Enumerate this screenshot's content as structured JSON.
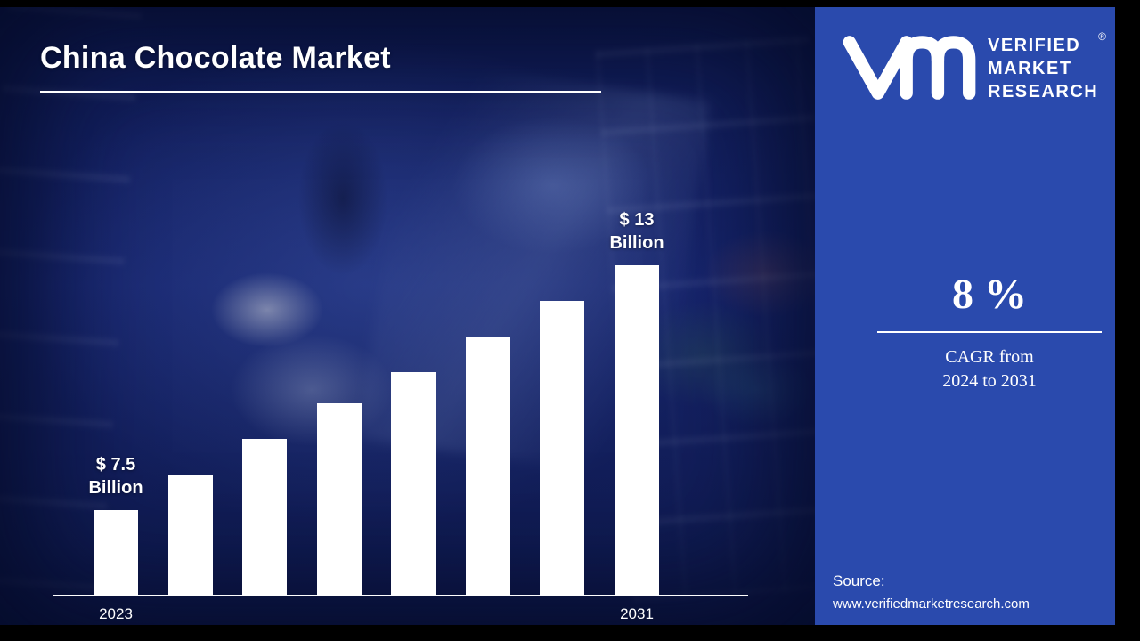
{
  "header": {
    "title": "China Chocolate Market"
  },
  "brand": {
    "name_lines": [
      "VERIFIED",
      "MARKET",
      "RESEARCH"
    ],
    "registered": "®"
  },
  "stat": {
    "value": "8 %",
    "line1": "CAGR from",
    "line2": "2024 to 2031"
  },
  "source": {
    "label": "Source:",
    "url": "www.verifiedmarketresearch.com"
  },
  "colors": {
    "panel": "#2a4aad",
    "background": "#16246e",
    "bar": "#ffffff",
    "text": "#ffffff"
  },
  "chart_data": {
    "type": "bar",
    "title": "China Chocolate Market",
    "unit": "USD Billion",
    "values": [
      7.5,
      8.3,
      9.1,
      9.9,
      10.6,
      11.4,
      12.2,
      13
    ],
    "ylim": [
      5.6,
      13
    ],
    "grid": false,
    "x_ticks": [
      {
        "bar_index": 0,
        "label": "2023"
      },
      {
        "bar_index": 7,
        "label": "2031"
      }
    ],
    "annotations": [
      {
        "bar_index": 0,
        "lines": [
          "$ 7.5",
          "Billion"
        ]
      },
      {
        "bar_index": 7,
        "lines": [
          "$ 13",
          "Billion"
        ]
      }
    ],
    "bar_color": "#ffffff",
    "axis_color": "#ffffff"
  }
}
